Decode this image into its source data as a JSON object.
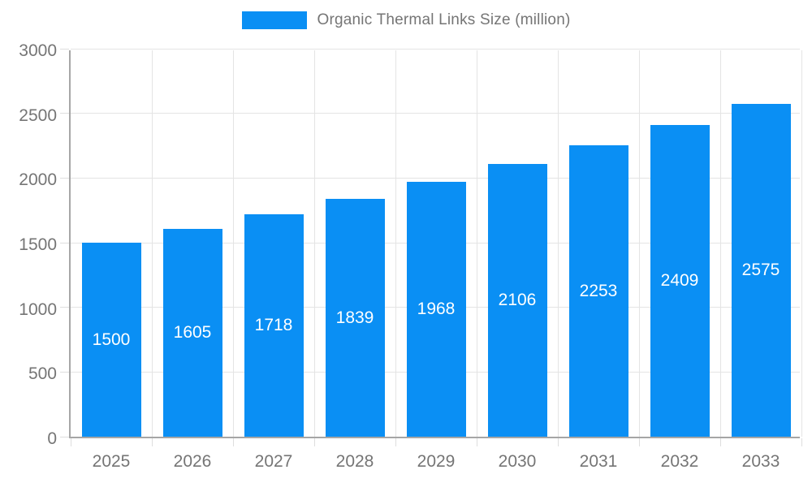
{
  "chart_data": {
    "type": "bar",
    "title": "",
    "legend_label": "Organic Thermal Links Size (million)",
    "legend_position": "top-center",
    "categories": [
      "2025",
      "2026",
      "2027",
      "2028",
      "2029",
      "2030",
      "2031",
      "2032",
      "2033"
    ],
    "values": [
      1500,
      1605,
      1718,
      1839,
      1968,
      2106,
      2253,
      2409,
      2575
    ],
    "value_labels": [
      "1500",
      "1605",
      "1718",
      "1839",
      "1968",
      "2106",
      "2253",
      "2409",
      "2575"
    ],
    "xlabel": "",
    "ylabel": "",
    "ylim": [
      0,
      3000
    ],
    "yticks": [
      0,
      500,
      1000,
      1500,
      2000,
      2500,
      3000
    ],
    "grid": true,
    "colors": {
      "bar": "#0a8ff4",
      "bar_value_text": "#ffffff",
      "axis_text": "#757575",
      "axis_line": "#a6a6a6",
      "gridline": "#e4e4e4",
      "background": "#ffffff"
    }
  }
}
